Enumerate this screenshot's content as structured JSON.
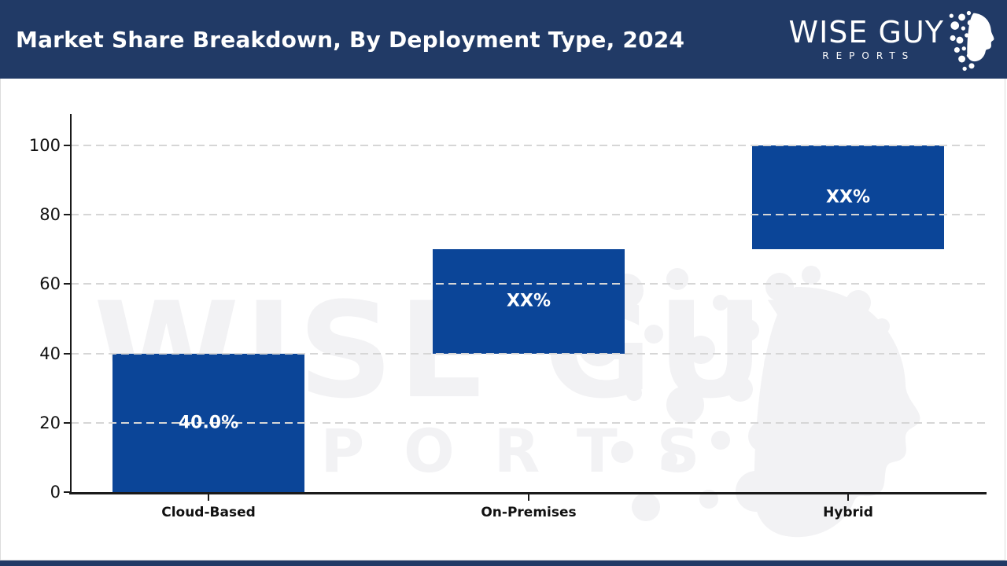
{
  "header": {
    "title": "Market Share Breakdown, By Deployment Type, 2024",
    "bg_color": "#213A66",
    "logo": {
      "line1": "WISE GUY",
      "line2": "REPORTS"
    }
  },
  "watermark": {
    "line1": "WISE GUY",
    "line2": "REPORTS"
  },
  "footer": {
    "accent_color": "#213A66"
  },
  "chart_data": {
    "type": "bar",
    "subtype": "floating-waterfall",
    "title": "Market Share Breakdown, By Deployment Type, 2024",
    "categories": [
      "Cloud-Based",
      "On-Premises",
      "Hybrid"
    ],
    "series": [
      {
        "name": "Market Share %",
        "ranges": [
          [
            0,
            40
          ],
          [
            40,
            70
          ],
          [
            70,
            100
          ]
        ]
      }
    ],
    "bar_labels": [
      "40.0%",
      "XX%",
      "XX%"
    ],
    "xlabel": "",
    "ylabel": "",
    "yticks": [
      0,
      20,
      40,
      60,
      80,
      100
    ],
    "ylim": [
      0,
      109
    ],
    "grid": "horizontal-dashed-over-bars",
    "gridline_color": "#D6D6D6",
    "bar_color": "#0B4598",
    "bar_label_color": "#ffffff",
    "axis_color": "#1a1a1a",
    "tick_label_color": "#111111"
  }
}
